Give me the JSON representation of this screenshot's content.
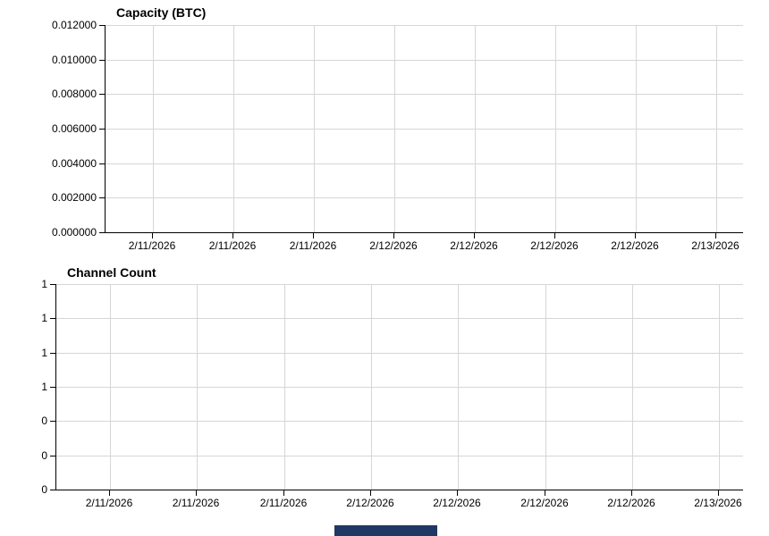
{
  "charts": [
    {
      "title": "Capacity (BTC)",
      "y_axis": {
        "tick_labels": [
          "0.012000",
          "0.010000",
          "0.008000",
          "0.006000",
          "0.004000",
          "0.002000",
          "0.000000"
        ]
      },
      "x_axis": {
        "tick_labels": [
          "2/11/2026",
          "2/11/2026",
          "2/11/2026",
          "2/12/2026",
          "2/12/2026",
          "2/12/2026",
          "2/12/2026",
          "2/13/2026"
        ]
      }
    },
    {
      "title": "Channel Count",
      "y_axis": {
        "tick_labels": [
          "1",
          "1",
          "1",
          "1",
          "0",
          "0",
          "0"
        ]
      },
      "x_axis": {
        "tick_labels": [
          "2/11/2026",
          "2/11/2026",
          "2/11/2026",
          "2/12/2026",
          "2/12/2026",
          "2/12/2026",
          "2/12/2026",
          "2/13/2026"
        ]
      }
    }
  ],
  "chart_data": [
    {
      "type": "line",
      "title": "Capacity (BTC)",
      "x": [
        "2/11/2026",
        "2/11/2026",
        "2/11/2026",
        "2/12/2026",
        "2/12/2026",
        "2/12/2026",
        "2/12/2026",
        "2/13/2026"
      ],
      "series": [],
      "ylabel": "",
      "xlabel": "",
      "ylim": [
        0.0,
        0.012
      ],
      "y_tick_step": 0.002,
      "grid": true,
      "legend": "none",
      "note": "plot area is empty - no data series rendered"
    },
    {
      "type": "line",
      "title": "Channel Count",
      "x": [
        "2/11/2026",
        "2/11/2026",
        "2/11/2026",
        "2/12/2026",
        "2/12/2026",
        "2/12/2026",
        "2/12/2026",
        "2/13/2026"
      ],
      "series": [],
      "ylabel": "",
      "xlabel": "",
      "ylim": [
        0,
        1
      ],
      "y_tick_count": 7,
      "grid": true,
      "legend": "none",
      "note": "plot area is empty - no data series rendered; fractional y ticks display rounded as 1,1,1,1,0,0,0"
    }
  ],
  "colors": {
    "background": "#ffffff",
    "axis": "#000000",
    "gridline": "#d6d6d6",
    "text": "#000000",
    "bottom_bar": "#1f3864"
  }
}
